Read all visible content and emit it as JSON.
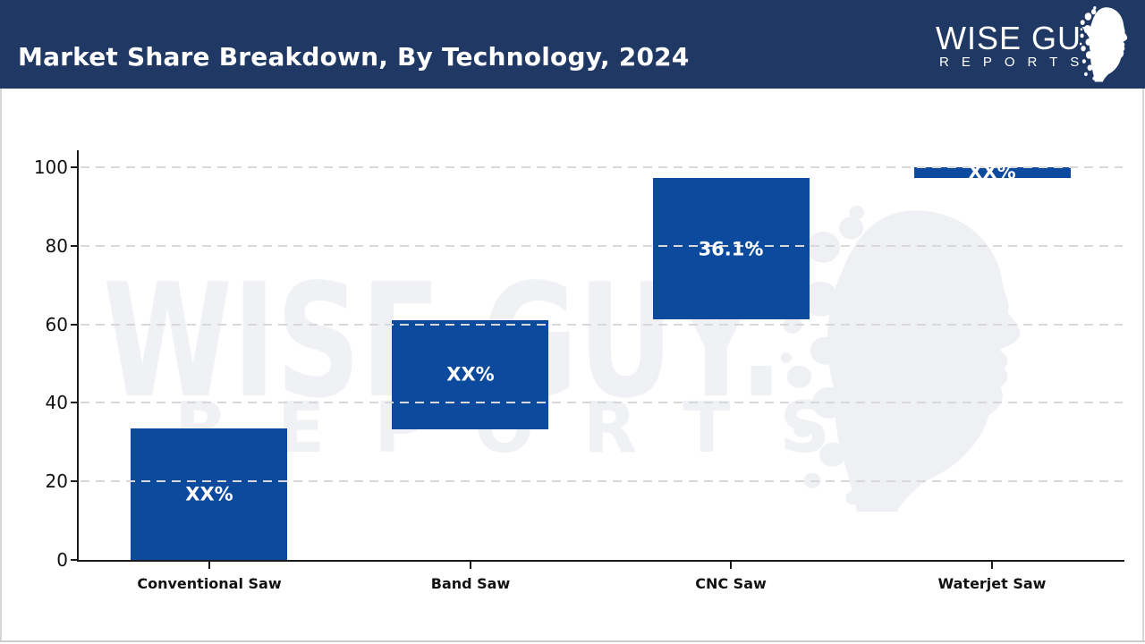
{
  "header": {
    "title": "Market Share Breakdown, By Technology, 2024",
    "bg_color": "#1f3864",
    "logo": {
      "line1": "WISE GUY",
      "line2": "REPORTS"
    }
  },
  "watermark": {
    "line1": "WISE GUY.",
    "line2": "REPORTS"
  },
  "chart_data": {
    "type": "waterfall-bar",
    "title": "Market Share Breakdown, By Technology, 2024",
    "categories": [
      "Conventional Saw",
      "Band Saw",
      "CNC Saw",
      "Waterjet Saw"
    ],
    "segments": [
      {
        "category": "Conventional Saw",
        "start": 0,
        "end": 33.4,
        "value_label": "XX%"
      },
      {
        "category": "Band Saw",
        "start": 33.4,
        "end": 61.1,
        "value_label": "XX%"
      },
      {
        "category": "CNC Saw",
        "start": 61.1,
        "end": 97.2,
        "value_label": "36.1%"
      },
      {
        "category": "Waterjet Saw",
        "start": 97.2,
        "end": 100,
        "value_label": "XX%"
      }
    ],
    "xlabel": "",
    "ylabel": "",
    "ylim": [
      0,
      100
    ],
    "yticks": [
      0,
      20,
      40,
      60,
      80,
      100
    ],
    "grid": "horizontal-dashed",
    "bar_color": "#0c4a9e",
    "bar_label_color": "#ffffff",
    "gridline_color": "#d8d8d8",
    "axis_color": "#1a1a1a"
  }
}
